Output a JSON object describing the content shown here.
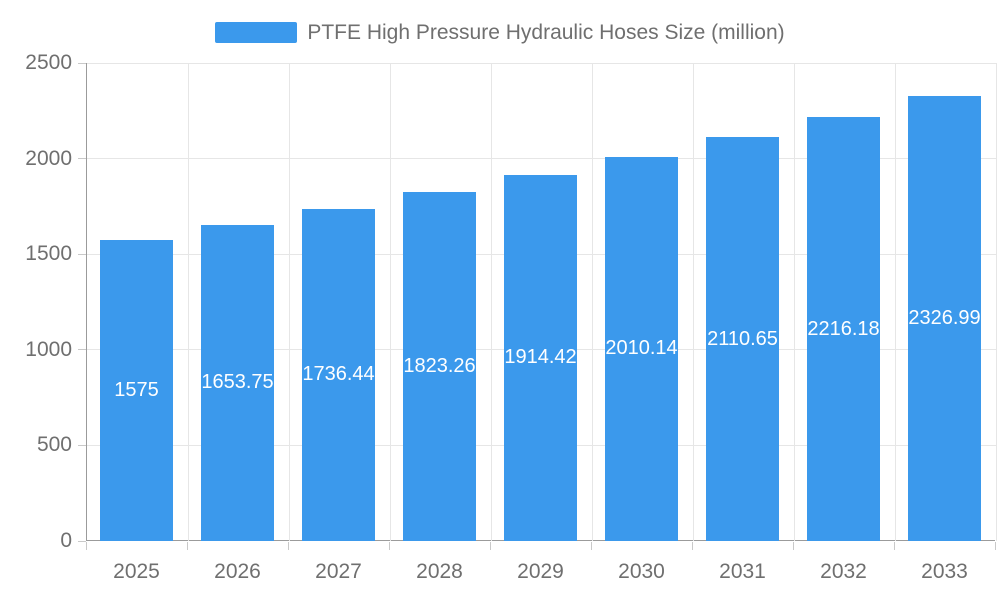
{
  "legend": {
    "label": "PTFE High Pressure Hydraulic Hoses Size (million)"
  },
  "chart_data": {
    "type": "bar",
    "title": "PTFE High Pressure Hydraulic Hoses Size (million)",
    "categories": [
      "2025",
      "2026",
      "2027",
      "2028",
      "2029",
      "2030",
      "2031",
      "2032",
      "2033"
    ],
    "values": [
      1575,
      1653.75,
      1736.44,
      1823.26,
      1914.42,
      2010.14,
      2110.65,
      2216.18,
      2326.99
    ],
    "value_labels": [
      "1575",
      "1653.75",
      "1736.44",
      "1823.26",
      "1914.42",
      "2010.14",
      "2110.65",
      "2216.18",
      "2326.99"
    ],
    "xlabel": "",
    "ylabel": "",
    "ylim": [
      0,
      2500
    ],
    "y_ticks": [
      0,
      500,
      1000,
      1500,
      2000,
      2500
    ],
    "y_tick_labels": [
      "0",
      "500",
      "1000",
      "1500",
      "2000",
      "2500"
    ],
    "grid": true,
    "legend_position": "top",
    "colors": {
      "bar": "#3B99EC",
      "bar_label": "#ffffff",
      "axis_text": "#6f6f6f",
      "gridline": "#e6e6e6",
      "tick_mark": "#c9c9c9",
      "axis_line": "#9b9b9b",
      "background": "#ffffff"
    }
  }
}
